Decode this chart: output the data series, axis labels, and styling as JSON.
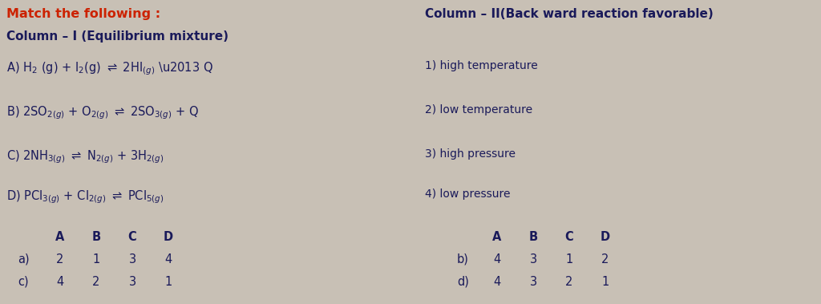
{
  "bg_color": "#c8c0b5",
  "title": "Match the following :",
  "title_color": "#cc2200",
  "title_fontsize": 11.5,
  "col1_header": "Column – I (Equilibrium mixture)",
  "col2_header": "Column – II(Back ward reaction favorable)",
  "col1_header_color": "#1a1a5a",
  "col2_header_color": "#1a1a5a",
  "header_fontsize": 11,
  "item_color": "#1a1a5a",
  "item_fontsize": 10.5,
  "col2_item_fontsize": 10,
  "table_fontsize": 10.5,
  "table_color": "#1a1a5a"
}
